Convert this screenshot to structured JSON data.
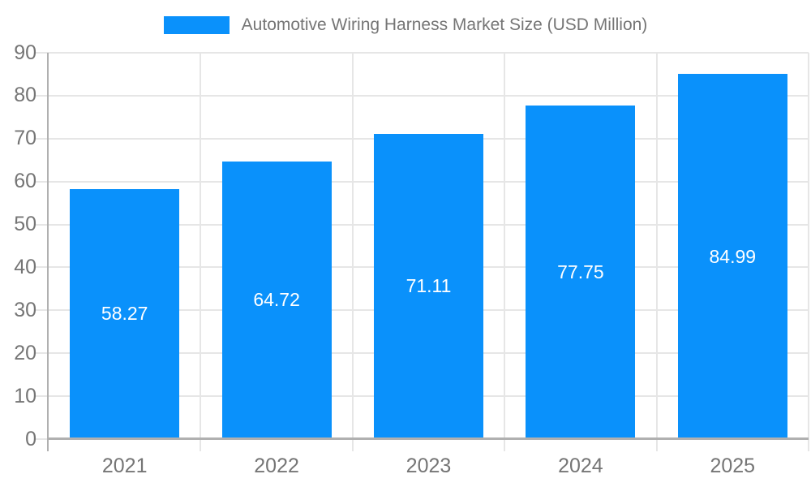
{
  "chart_data": {
    "type": "bar",
    "title": "Automotive Wiring Harness Market Size (USD Million)",
    "legend": {
      "label": "Automotive Wiring Harness Market Size (USD Million)",
      "position": "top-center"
    },
    "categories": [
      "2021",
      "2022",
      "2023",
      "2024",
      "2025"
    ],
    "values": [
      58.27,
      64.72,
      71.11,
      77.75,
      84.99
    ],
    "value_labels": [
      "58.27",
      "64.72",
      "71.11",
      "77.75",
      "84.99"
    ],
    "xlabel": "",
    "ylabel": "",
    "ylim": [
      0,
      90
    ],
    "ytick_interval": 10,
    "ytick_labels": [
      "0",
      "10",
      "20",
      "30",
      "40",
      "50",
      "60",
      "70",
      "80",
      "90"
    ],
    "grid": true,
    "colors": {
      "bar": "#0a91fb",
      "bar_label_text": "#ffffff",
      "axis_text": "#757575",
      "gridline": "#e6e6e6",
      "axis_line": "#b0b0b0",
      "background": "#ffffff"
    }
  }
}
